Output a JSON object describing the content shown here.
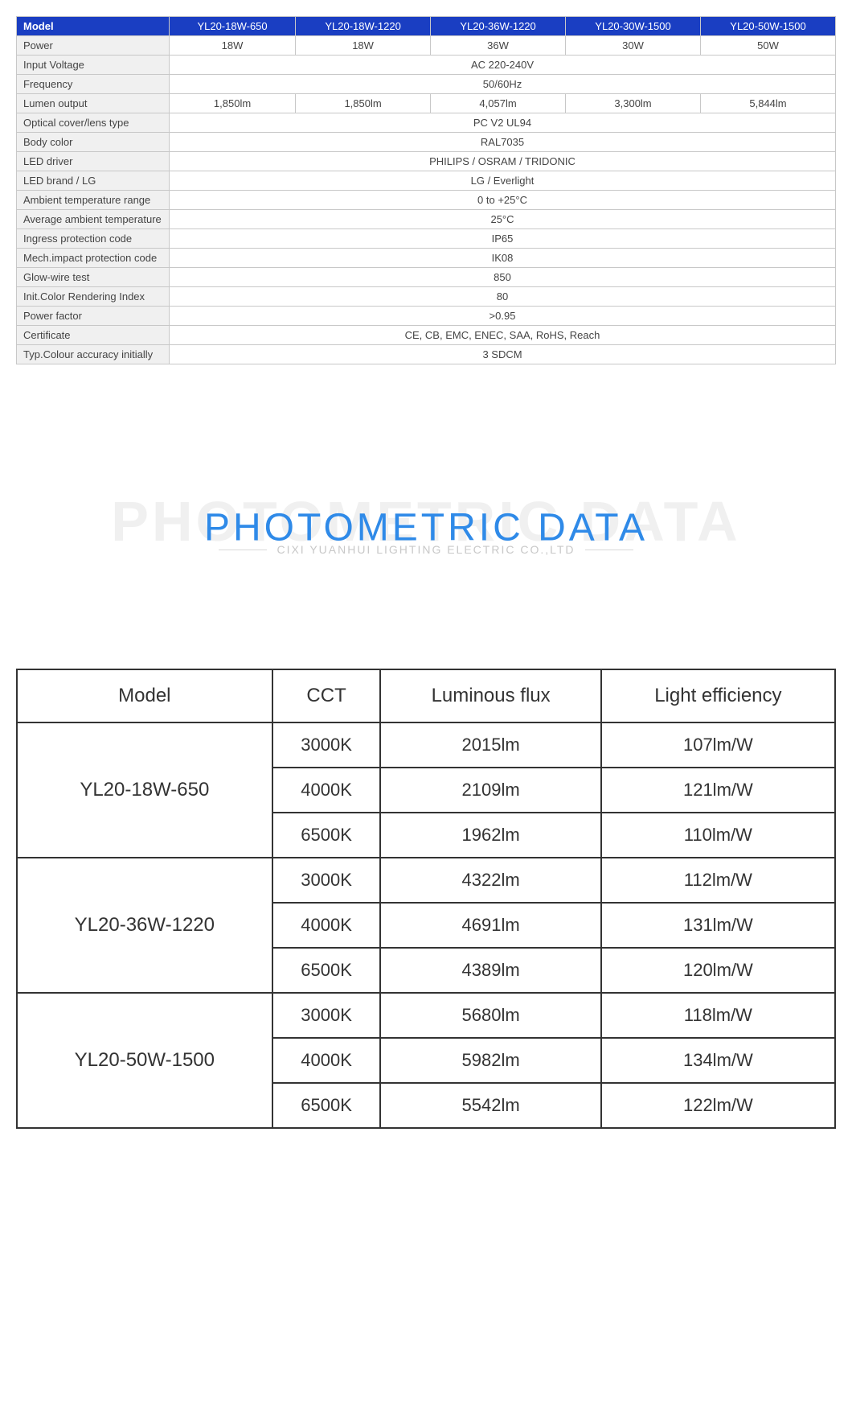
{
  "spec_table": {
    "header_label": "Model",
    "models": [
      "YL20-18W-650",
      "YL20-18W-1220",
      "YL20-36W-1220",
      "YL20-30W-1500",
      "YL20-50W-1500"
    ],
    "rows": [
      {
        "label": "Power",
        "values": [
          "18W",
          "18W",
          "36W",
          "30W",
          "50W"
        ]
      },
      {
        "label": "Input Voltage",
        "span": "AC 220-240V"
      },
      {
        "label": "Frequency",
        "span": "50/60Hz"
      },
      {
        "label": "Lumen output",
        "values": [
          "1,850lm",
          "1,850lm",
          "4,057lm",
          "3,300lm",
          "5,844lm"
        ]
      },
      {
        "label": "Optical cover/lens type",
        "span": "PC V2 UL94"
      },
      {
        "label": "Body color",
        "span": "RAL7035"
      },
      {
        "label": "LED driver",
        "span": "PHILIPS  / OSRAM  /  TRIDONIC"
      },
      {
        "label": "LED brand / LG",
        "span": "LG / Everlight"
      },
      {
        "label": "Ambient temperature range",
        "span": "0 to +25°C"
      },
      {
        "label": "Average ambient temperature",
        "span": "25°C"
      },
      {
        "label": "Ingress protection code",
        "span": "IP65"
      },
      {
        "label": "Mech.impact protection code",
        "span": "IK08"
      },
      {
        "label": "Glow-wire test",
        "span": "850"
      },
      {
        "label": "Init.Color Rendering Index",
        "span": "80"
      },
      {
        "label": "Power factor",
        "span": ">0.95"
      },
      {
        "label": "Certificate",
        "span": "CE, CB, EMC, ENEC, SAA, RoHS, Reach"
      },
      {
        "label": "Typ.Colour accuracy initially",
        "span": "3 SDCM"
      }
    ]
  },
  "section": {
    "ghost": "PHOTOMETRIC DATA",
    "title": "PHOTOMETRIC DATA",
    "subtitle": "CIXI YUANHUI LIGHTING ELECTRIC  CO.,LTD"
  },
  "photo_table": {
    "columns": [
      "Model",
      "CCT",
      "Luminous flux",
      "Light efficiency"
    ],
    "groups": [
      {
        "model": "YL20-18W-650",
        "rows": [
          {
            "cct": "3000K",
            "flux": "2015lm",
            "eff": "107lm/W"
          },
          {
            "cct": "4000K",
            "flux": "2109lm",
            "eff": "121lm/W"
          },
          {
            "cct": "6500K",
            "flux": "1962lm",
            "eff": "110lm/W"
          }
        ]
      },
      {
        "model": "YL20-36W-1220",
        "rows": [
          {
            "cct": "3000K",
            "flux": "4322lm",
            "eff": "112lm/W"
          },
          {
            "cct": "4000K",
            "flux": "4691lm",
            "eff": "131lm/W"
          },
          {
            "cct": "6500K",
            "flux": "4389lm",
            "eff": "120lm/W"
          }
        ]
      },
      {
        "model": "YL20-50W-1500",
        "rows": [
          {
            "cct": "3000K",
            "flux": "5680lm",
            "eff": "118lm/W"
          },
          {
            "cct": "4000K",
            "flux": "5982lm",
            "eff": "134lm/W"
          },
          {
            "cct": "6500K",
            "flux": "5542lm",
            "eff": "122lm/W"
          }
        ]
      }
    ]
  }
}
